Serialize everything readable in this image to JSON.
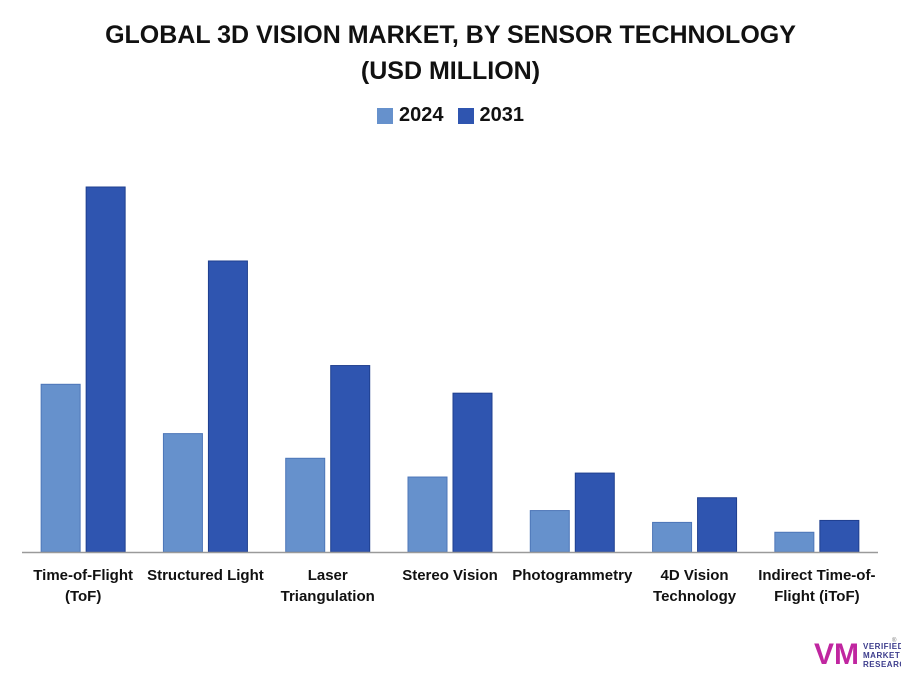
{
  "chart_data": {
    "type": "bar",
    "title": [
      "GLOBAL 3D VISION MARKET, BY SENSOR TECHNOLOGY",
      "(USD MILLION)"
    ],
    "categories": [
      [
        "Time-of-Flight",
        "(ToF)"
      ],
      [
        "Structured Light"
      ],
      [
        "Laser",
        "Triangulation"
      ],
      [
        "Stereo Vision"
      ],
      [
        "Photogrammetry"
      ],
      [
        "4D Vision",
        "Technology"
      ],
      [
        "Indirect Time-of-",
        "Flight (iToF)"
      ]
    ],
    "series": [
      {
        "name": "2024",
        "color": "#6691cc",
        "values": [
          1700,
          1200,
          950,
          760,
          420,
          300,
          200
        ]
      },
      {
        "name": "2031",
        "color": "#2f55b0",
        "values": [
          3700,
          2950,
          1890,
          1610,
          800,
          550,
          320
        ]
      }
    ],
    "ylim": [
      0,
      3700
    ],
    "xlabel": "",
    "ylabel": "",
    "grid": false,
    "legend_position": "top-center"
  },
  "logo": {
    "lines": [
      "VERIFIED",
      "MARKET",
      "RESEARCH"
    ],
    "mark": "VM"
  }
}
